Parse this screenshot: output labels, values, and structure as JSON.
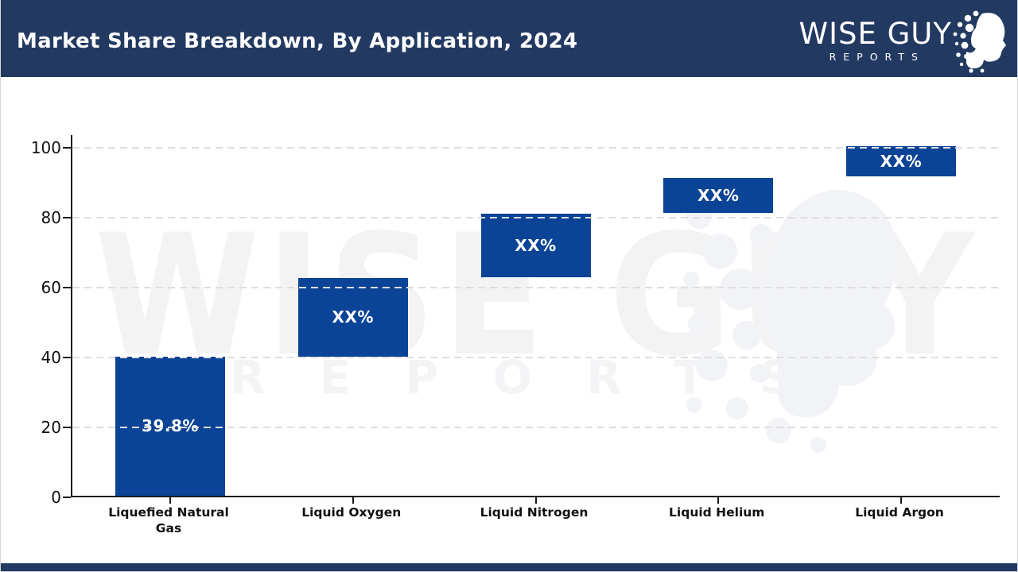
{
  "header": {
    "title": "Market Share Breakdown, By Application, 2024",
    "logo": {
      "wordmark": "WISE GUY",
      "subtitle": "REPORTS"
    }
  },
  "watermark": {
    "wordmark": "WISE GUY",
    "subtitle": "REPORTS"
  },
  "colors": {
    "header_navy": "#223a62",
    "bar_blue": "#0b4396",
    "grid_gray": "#dedede",
    "axis_black": "#1a1a1a",
    "watermark_gray": "#f2f3f6"
  },
  "chart_data": {
    "type": "bar",
    "subtype": "waterfall",
    "title": "Market Share Breakdown, By Application, 2024",
    "categories": [
      "Liquefied Natural Gas",
      "Liquid Oxygen",
      "Liquid Nitrogen",
      "Liquid Helium",
      "Liquid Argon"
    ],
    "xlabel": "",
    "ylabel": "",
    "ylim": [
      0,
      105
    ],
    "yticks": [
      0,
      20,
      40,
      60,
      80,
      100
    ],
    "grid": "horizontal-dashed",
    "legend": "none",
    "bars": [
      {
        "category": "Liquefied Natural Gas",
        "start": 0,
        "end": 39.8,
        "label": "39.8%"
      },
      {
        "category": "Liquid Oxygen",
        "start": 39.8,
        "end": 62.3,
        "label": "XX%"
      },
      {
        "category": "Liquid Nitrogen",
        "start": 62.5,
        "end": 80.7,
        "label": "XX%"
      },
      {
        "category": "Liquid Helium",
        "start": 80.9,
        "end": 91.0,
        "label": "XX%"
      },
      {
        "category": "Liquid Argon",
        "start": 91.3,
        "end": 99.9,
        "label": "XX%"
      }
    ]
  }
}
